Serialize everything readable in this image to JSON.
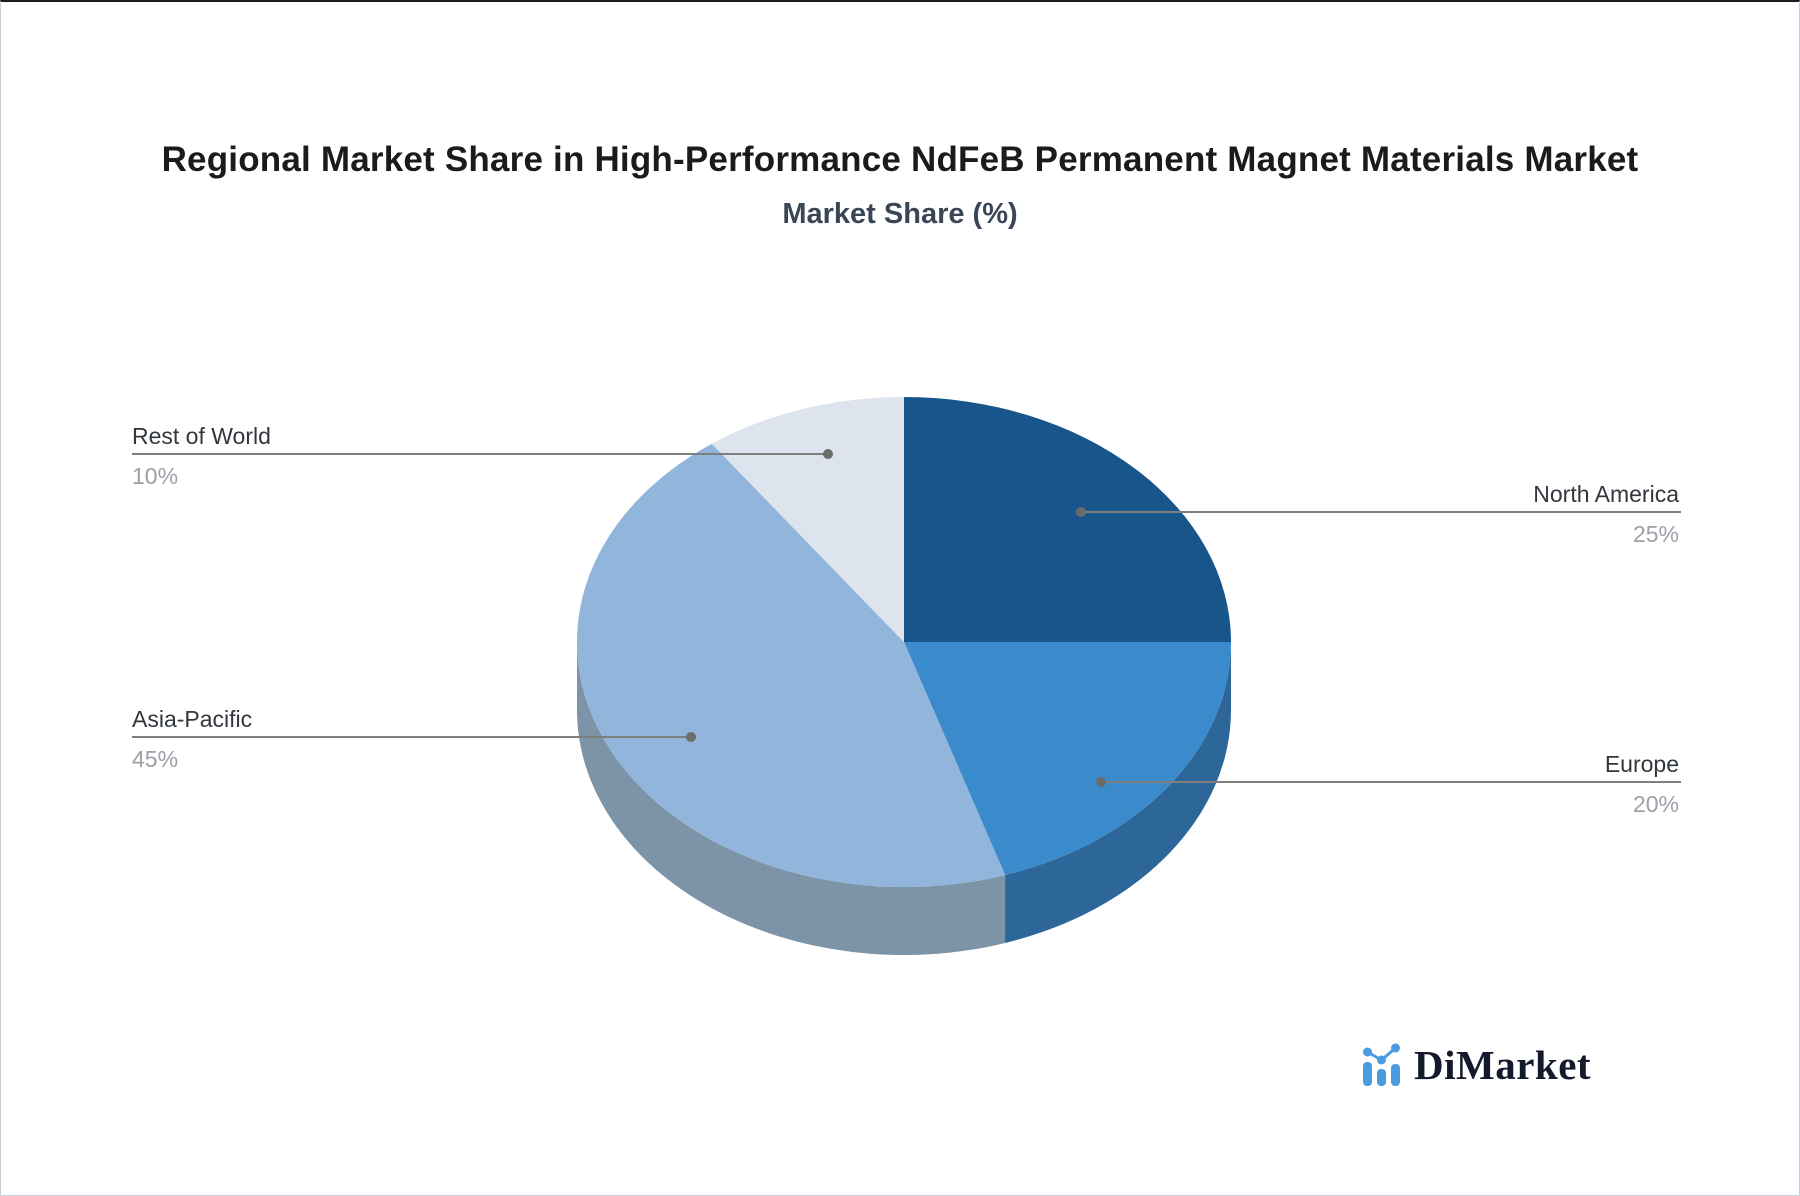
{
  "header": {
    "title": "Regional Market Share in High-Performance NdFeB Permanent Magnet Materials Market",
    "subtitle": "Market Share (%)"
  },
  "chart_data": {
    "type": "pie",
    "style": "3d",
    "title": "Regional Market Share in High-Performance NdFeB Permanent Magnet Materials Market",
    "subtitle": "Market Share (%)",
    "unit": "%",
    "start_angle_deg": 0,
    "direction": "clockwise",
    "legend": "none",
    "label_style": "leader-lines-with-dots",
    "series": [
      {
        "name": "North America",
        "value": 25,
        "label": "25%",
        "color": "#18558A"
      },
      {
        "name": "Europe",
        "value": 20,
        "label": "20%",
        "color": "#3B8ACB",
        "side_color": "#2D6799"
      },
      {
        "name": "Asia-Pacific",
        "value": 45,
        "label": "45%",
        "color": "#92B5DB",
        "side_color": "#7C93A8"
      },
      {
        "name": "Rest of World",
        "value": 10,
        "label": "10%",
        "color": "#DEE4EE"
      }
    ]
  },
  "colors": {
    "background": "#ffffff",
    "title_text": "#1b1b1b",
    "subtitle_text": "#3a4656",
    "label_text": "#32373d",
    "value_text": "#9ca1a8",
    "leader_line": "#7e7e7e",
    "leader_dot": "#6b6b6b",
    "top_border": "#1c1c1c"
  },
  "branding": {
    "logo_text": "DiMarket",
    "logo_icon": "bars-trend-chart-icon",
    "logo_text_color": "#141a2c",
    "logo_accent_color": "#4a9be0"
  }
}
